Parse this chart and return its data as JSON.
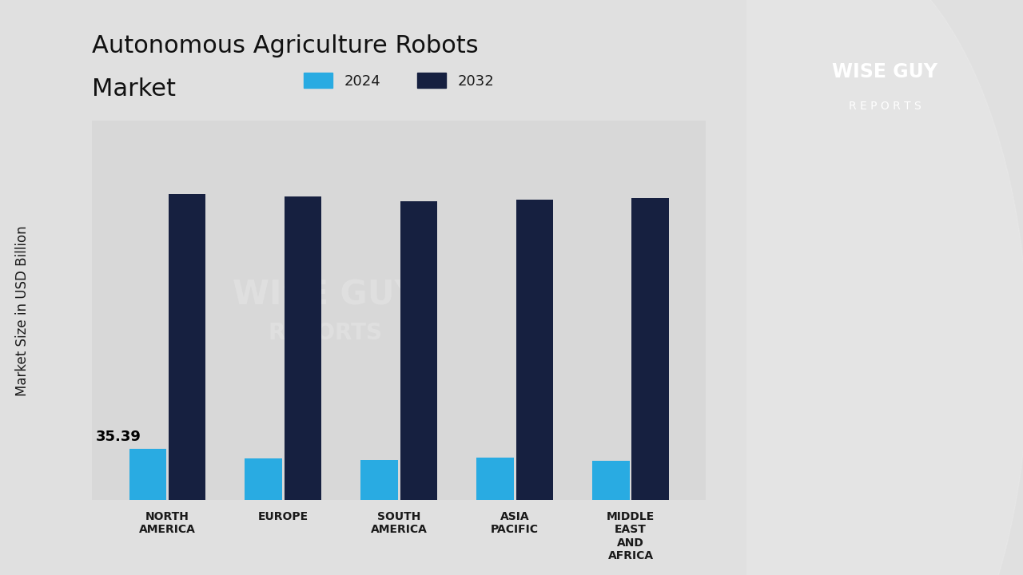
{
  "categories": [
    "NORTH\nAMERICA",
    "EUROPE",
    "SOUTH\nAMERICA",
    "ASIA\nPACIFIC",
    "MIDDLE\nEAST\nAND\nAFRICA"
  ],
  "values_2024": [
    35.39,
    28.5,
    27.8,
    29.2,
    27.0
  ],
  "values_2032": [
    210.0,
    208.0,
    205.0,
    206.0,
    207.0
  ],
  "color_2024": "#29ABE2",
  "color_2032": "#162040",
  "title_line1": "Autonomous Agriculture Robots",
  "title_line2": "Market",
  "ylabel": "Market Size in USD Billion",
  "legend_2024": "2024",
  "legend_2032": "2032",
  "bar_annotation": "35.39",
  "background_color": "#E0E0E0",
  "plot_bg_color": "#D8D8D8",
  "title_color": "#111111",
  "right_panel_color": "#1B2A4A",
  "ylim": [
    0,
    260
  ]
}
